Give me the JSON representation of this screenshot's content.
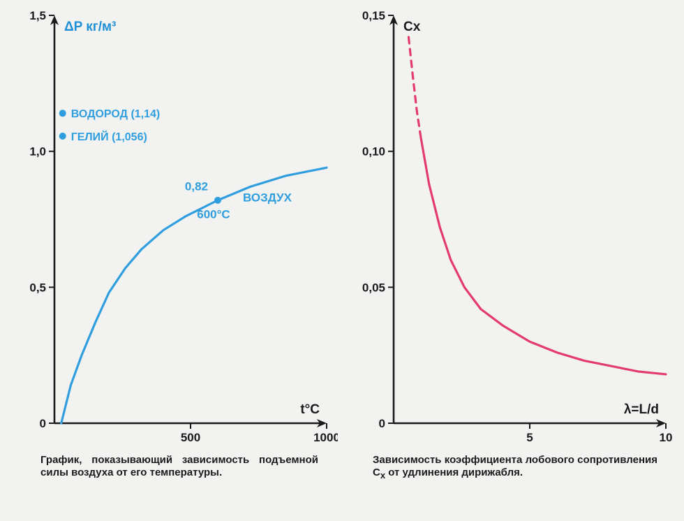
{
  "global": {
    "background_color": "#f2f3f1",
    "axis_color": "#1a1a1a",
    "axis_width": 2.6,
    "tick_len": 8,
    "axis_fontsize": 17,
    "axis_fontweight": 600
  },
  "left": {
    "type": "line",
    "caption": "График, показывающий зависимость подъемной силы воздуха от его температуры.",
    "y_axis_label": "ΔP кг/м³",
    "y_axis_label_color": "#1f8fd6",
    "x_axis_label": "t°C",
    "x_axis_label_color": "#1a1a1a",
    "xlim": [
      0,
      1000
    ],
    "ylim": [
      0,
      1.5
    ],
    "xticks": [
      0,
      500,
      1000
    ],
    "yticks": [
      0,
      0.5,
      1.0,
      1.5
    ],
    "ytick_labels": [
      "0",
      "0,5",
      "1,0",
      "1,5"
    ],
    "curve": {
      "label": "ВОЗДУХ",
      "color": "#2f9dde",
      "width": 3.2,
      "points": [
        {
          "x": 25,
          "y": 0.0
        },
        {
          "x": 60,
          "y": 0.14
        },
        {
          "x": 100,
          "y": 0.25
        },
        {
          "x": 150,
          "y": 0.37
        },
        {
          "x": 200,
          "y": 0.48
        },
        {
          "x": 260,
          "y": 0.57
        },
        {
          "x": 320,
          "y": 0.64
        },
        {
          "x": 400,
          "y": 0.71
        },
        {
          "x": 480,
          "y": 0.76
        },
        {
          "x": 600,
          "y": 0.82
        },
        {
          "x": 720,
          "y": 0.87
        },
        {
          "x": 850,
          "y": 0.91
        },
        {
          "x": 1000,
          "y": 0.94
        }
      ],
      "highlight": {
        "x": 600,
        "y": 0.82,
        "label_val": "0,82",
        "label_x": "600°C"
      }
    },
    "ref_points": [
      {
        "label": "ВОДОРОД (1,14)",
        "y": 1.14,
        "color": "#2f9dde"
      },
      {
        "label": "ГЕЛИЙ (1,056)",
        "y": 1.056,
        "color": "#2f9dde"
      }
    ]
  },
  "right": {
    "type": "line",
    "caption_pre": "Зависимость коэффициента лобового сопротивления ",
    "caption_sym": "Cx",
    "caption_post": " от удлинения дирижабля.",
    "y_axis_label": "Cx",
    "y_axis_label_color": "#1a1a1a",
    "x_axis_label": "λ=L/d",
    "x_axis_label_color": "#1a1a1a",
    "xlim": [
      0,
      10
    ],
    "ylim": [
      0,
      0.15
    ],
    "xticks": [
      0,
      5,
      10
    ],
    "yticks": [
      0,
      0.05,
      0.1,
      0.15
    ],
    "ytick_labels": [
      "0",
      "0,05",
      "0,10",
      "0,15"
    ],
    "curve": {
      "color": "#e33a6f",
      "width": 3.2,
      "dash_until_x": 1.0,
      "points": [
        {
          "x": 0.55,
          "y": 0.142
        },
        {
          "x": 0.7,
          "y": 0.128
        },
        {
          "x": 0.85,
          "y": 0.115
        },
        {
          "x": 1.0,
          "y": 0.105
        },
        {
          "x": 1.3,
          "y": 0.088
        },
        {
          "x": 1.7,
          "y": 0.072
        },
        {
          "x": 2.1,
          "y": 0.06
        },
        {
          "x": 2.6,
          "y": 0.05
        },
        {
          "x": 3.2,
          "y": 0.042
        },
        {
          "x": 4.0,
          "y": 0.036
        },
        {
          "x": 5.0,
          "y": 0.03
        },
        {
          "x": 6.0,
          "y": 0.026
        },
        {
          "x": 7.0,
          "y": 0.023
        },
        {
          "x": 8.0,
          "y": 0.021
        },
        {
          "x": 9.0,
          "y": 0.019
        },
        {
          "x": 10.0,
          "y": 0.018
        }
      ]
    }
  }
}
